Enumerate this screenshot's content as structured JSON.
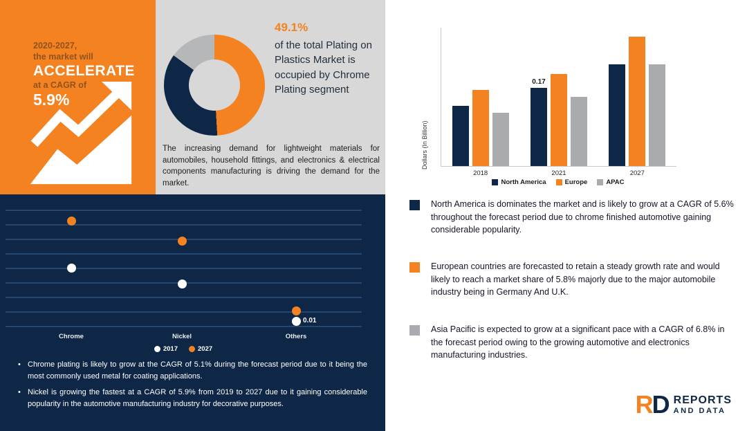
{
  "colors": {
    "orange": "#f58220",
    "navy": "#0e2747",
    "gray": "#a9abae",
    "panel_gray": "#d8d8d8"
  },
  "promo": {
    "line1": "2020-2027,",
    "line2": "the market will",
    "line3": "ACCELERATE",
    "line4": "at a CAGR of",
    "line5": "5.9%"
  },
  "donut_section": {
    "highlight_pct": "49.1%",
    "caption": "of the total Plating on Plastics Market is occupied by Chrome Plating segment",
    "note": "The increasing demand for lightweight materials for automobiles, household fittings, and electronics & electrical components manufacturing is driving the demand for the market."
  },
  "segment_section": {
    "bullets": [
      "Chrome plating is likely to grow at the CAGR of 5.1% during the forecast period due to it being the most commonly used metal for coating applications.",
      "Nickel is growing the fastest at a CAGR of 5.9% from 2019 to 2027 due to it gaining considerable popularity in the automotive manufacturing industry for decorative purposes."
    ]
  },
  "region_section": {
    "bullets": [
      {
        "color": "#0e2747",
        "text": "North America is dominates the market and is likely to grow at a CAGR of 5.6% throughout the forecast period due to chrome finished automotive gaining considerable popularity."
      },
      {
        "color": "#f58220",
        "text": "European countries are forecasted to retain a steady growth rate and would likely to reach a market share of 5.8% majorly due to the major automobile industry being in Germany And U.K."
      },
      {
        "color": "#a9abae",
        "text": "Asia Pacific is expected to grow at a significant pace with a CAGR of 6.8% in the forecast period owing to the growing automotive and electronics manufacturing industries."
      }
    ]
  },
  "logo": {
    "mark_r": "R",
    "mark_d": "D",
    "line1": "REPORTS",
    "line2": "AND DATA"
  },
  "chart_data": [
    {
      "type": "pie",
      "subtype": "donut",
      "title": "49.1% of the total Plating on Plastics Market is occupied by Chrome Plating segment",
      "segments": [
        {
          "label": "Chrome Plating",
          "value": 49.1,
          "color": "#f58220"
        },
        {
          "label": "",
          "value": 35.9,
          "color": "#0e2747",
          "estimated": true
        },
        {
          "label": "",
          "value": 15.0,
          "color": "#b5b7b9",
          "estimated": true
        }
      ]
    },
    {
      "type": "scatter",
      "subtype": "dot-plot",
      "categories": [
        "Chrome",
        "Nickel",
        "Others"
      ],
      "series": [
        {
          "name": "2017",
          "color": "#ffffff",
          "values": [
            0.5,
            0.36,
            0.04
          ]
        },
        {
          "name": "2027",
          "color": "#f58220",
          "values": [
            0.9,
            0.73,
            0.13
          ]
        }
      ],
      "annotations": [
        {
          "text": "0.01",
          "category": "Others",
          "series": "2017"
        }
      ],
      "ylim": [
        0,
        1
      ],
      "note": "axis unlabeled; values are relative heights estimated from gridlines",
      "gridlines": 9,
      "legend_position": "bottom"
    },
    {
      "type": "bar",
      "title": "",
      "xlabel": "",
      "ylabel": "Dollars (In Billion)",
      "categories": [
        "2018",
        "2021",
        "2027"
      ],
      "series": [
        {
          "name": "North America",
          "color": "#0e2747",
          "values": [
            0.13,
            0.17,
            0.22
          ]
        },
        {
          "name": "Europe",
          "color": "#f58220",
          "values": [
            0.165,
            0.2,
            0.28
          ]
        },
        {
          "name": "APAC",
          "color": "#a9abae",
          "values": [
            0.115,
            0.15,
            0.22
          ]
        }
      ],
      "ylim": [
        0,
        0.3
      ],
      "annotations": [
        {
          "text": "0.17",
          "category": "2021",
          "series": "North America"
        }
      ],
      "grid": false,
      "legend_position": "bottom"
    }
  ]
}
